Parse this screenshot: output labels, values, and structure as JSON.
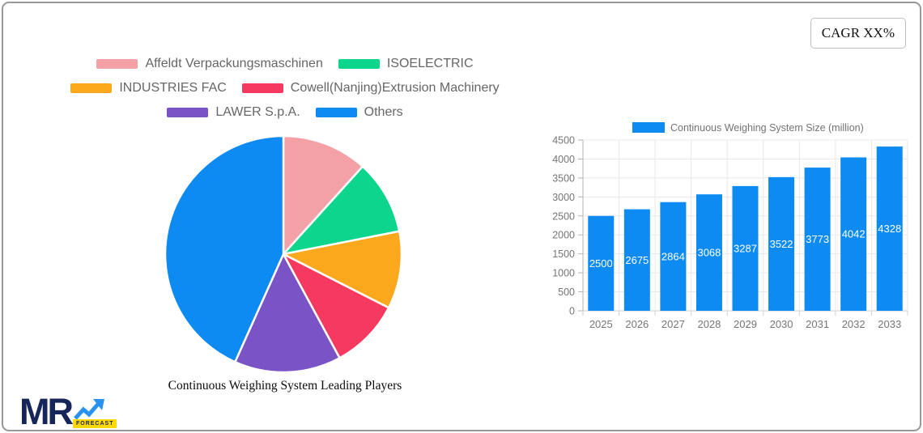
{
  "card": {
    "cagr_label": "CAGR XX%"
  },
  "logo": {
    "mr": "MR",
    "forecast": "FORECAST"
  },
  "chart_data": [
    {
      "type": "pie",
      "title": "Continuous Weighing System Leading Players",
      "labels": [
        "Affeldt Verpackungsmaschinen",
        "ISOELECTRIC",
        "INDUSTRIES FAC",
        "Cowell(Nanjing)Extrusion Machinery",
        "LAWER S.p.A.",
        "Others"
      ],
      "values": [
        11.7,
        10.2,
        10.6,
        9.6,
        14.6,
        43.3
      ],
      "colors": [
        "#f4a0a7",
        "#0ed58c",
        "#fba81c",
        "#f5395f",
        "#7a54c6",
        "#0d8bf2"
      ],
      "start_angle_deg": 0,
      "direction": "clockwise",
      "legend_position": "top",
      "legend_text_color": "#666666"
    },
    {
      "type": "bar",
      "legend_label": "Continuous Weighing System Size (million)",
      "categories": [
        "2025",
        "2026",
        "2027",
        "2028",
        "2029",
        "2030",
        "2031",
        "2032",
        "2033"
      ],
      "values": [
        2500,
        2675,
        2864,
        3068,
        3287,
        3522,
        3773,
        4042,
        4328
      ],
      "bar_color": "#0d8bf2",
      "value_label_color": "#ffffff",
      "tick_color": "#757575",
      "grid_color": "#e8e8e8",
      "ylim": [
        0,
        4500
      ],
      "ytick_step": 500,
      "grid": true,
      "legend_position": "top"
    }
  ]
}
